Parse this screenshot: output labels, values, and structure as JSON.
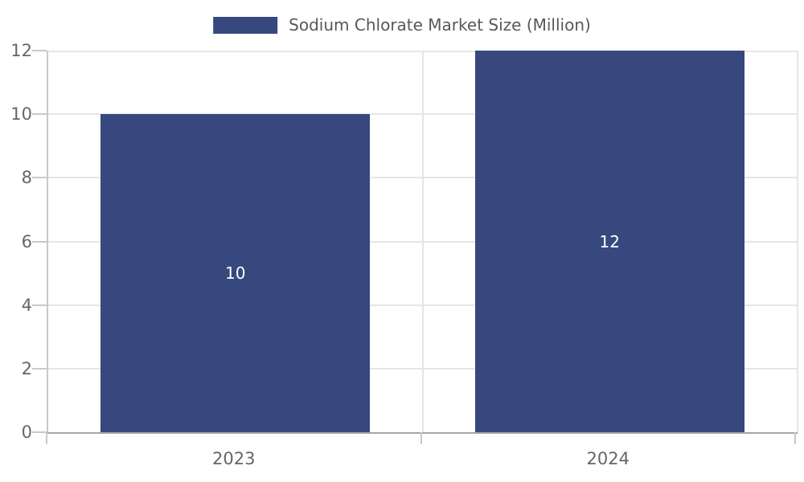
{
  "chart_data": {
    "type": "bar",
    "title": "Sodium Chlorate Market Size (Million)",
    "categories": [
      "2023",
      "2024"
    ],
    "values": [
      10,
      12
    ],
    "data_labels": [
      "10",
      "12"
    ],
    "xlabel": "",
    "ylabel": "",
    "ylim": [
      0,
      12
    ],
    "yticks": [
      0,
      2,
      4,
      6,
      8,
      10,
      12
    ],
    "grid": true,
    "legend_position": "top-center",
    "colors": {
      "bar": "#36487e",
      "grid": "#e6e6e6",
      "y_axis_line": "#c9c9c9",
      "x_axis_line": "#a6a6a6",
      "tick": "#c9c9c9",
      "tick_label": "#666666",
      "legend_text": "#58585a",
      "data_label": "#ffffff",
      "background": "#ffffff"
    }
  }
}
